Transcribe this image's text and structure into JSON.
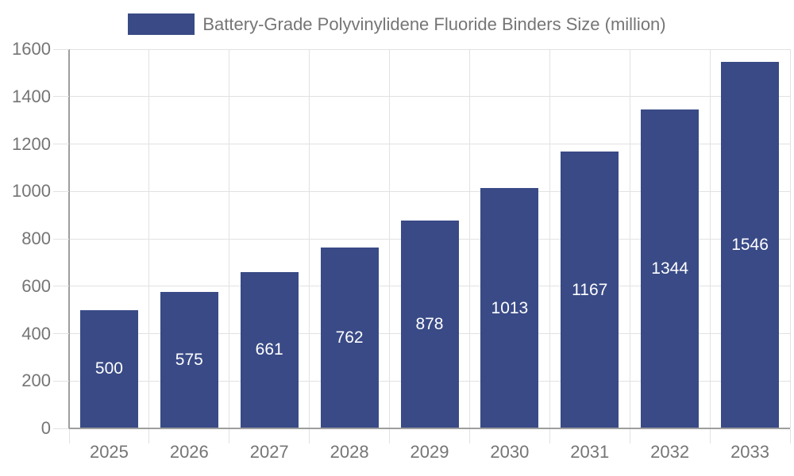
{
  "legend": {
    "label": "Battery-Grade Polyvinylidene Fluoride Binders Size (million)"
  },
  "chart_data": {
    "type": "bar",
    "title": "Battery-Grade Polyvinylidene Fluoride Binders Size (million)",
    "series_name": "Battery-Grade Polyvinylidene Fluoride Binders Size (million)",
    "categories": [
      "2025",
      "2026",
      "2027",
      "2028",
      "2029",
      "2030",
      "2031",
      "2032",
      "2033"
    ],
    "values": [
      500,
      575,
      661,
      762,
      878,
      1013,
      1167,
      1344,
      1546
    ],
    "xlabel": "",
    "ylabel": "",
    "ylim": [
      0,
      1600
    ],
    "yticks": [
      0,
      200,
      400,
      600,
      800,
      1000,
      1200,
      1400,
      1600
    ],
    "grid": true,
    "legend_position": "top-center",
    "value_label_position": "inside-center",
    "colors": {
      "bar": "#394A86",
      "label_on_bar": "#ffffff",
      "axis_line": "#9e9e9e",
      "grid_line": "#e2e2e2",
      "tick_text": "#757575",
      "title_text": "#757575",
      "background": "#ffffff"
    }
  }
}
